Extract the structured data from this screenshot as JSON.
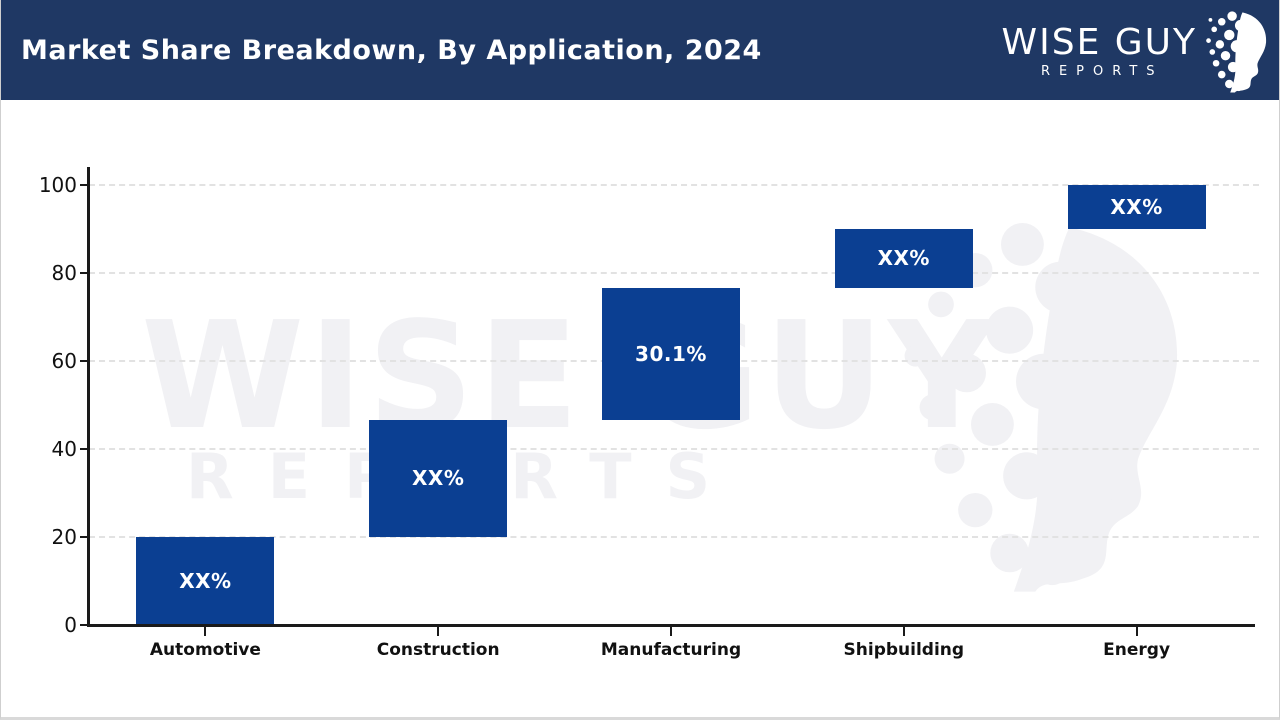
{
  "header": {
    "title": "Market Share Breakdown, By Application, 2024",
    "logo": {
      "line1": "WISE GUY",
      "line2": "REPORTS"
    }
  },
  "watermark": {
    "line1": "WISE GUY",
    "line2": "REPORTS"
  },
  "colors": {
    "header_bg": "#1f3864",
    "bar": "#0b3f92",
    "grid": "#e2e2e2",
    "watermark": "#f1f1f4",
    "bar_label_text": "#ffffff"
  },
  "chart_data": {
    "type": "bar",
    "subtype": "waterfall",
    "title": "Market Share Breakdown, By Application, 2024",
    "categories": [
      "Automotive",
      "Construction",
      "Manufacturing",
      "Shipbuilding",
      "Energy"
    ],
    "segments": [
      {
        "category": "Automotive",
        "start": 0,
        "end": 20,
        "label": "XX%"
      },
      {
        "category": "Construction",
        "start": 20,
        "end": 46.6,
        "label": "XX%"
      },
      {
        "category": "Manufacturing",
        "start": 46.6,
        "end": 76.7,
        "label": "30.1%"
      },
      {
        "category": "Shipbuilding",
        "start": 76.7,
        "end": 89.9,
        "label": "XX%"
      },
      {
        "category": "Energy",
        "start": 89.9,
        "end": 100,
        "label": "XX%"
      }
    ],
    "yticks": [
      0,
      20,
      40,
      60,
      80,
      100
    ],
    "ylim": [
      0,
      104
    ],
    "xlabel": "",
    "ylabel": "",
    "grid": "horizontal-dashed",
    "legend": "none"
  }
}
